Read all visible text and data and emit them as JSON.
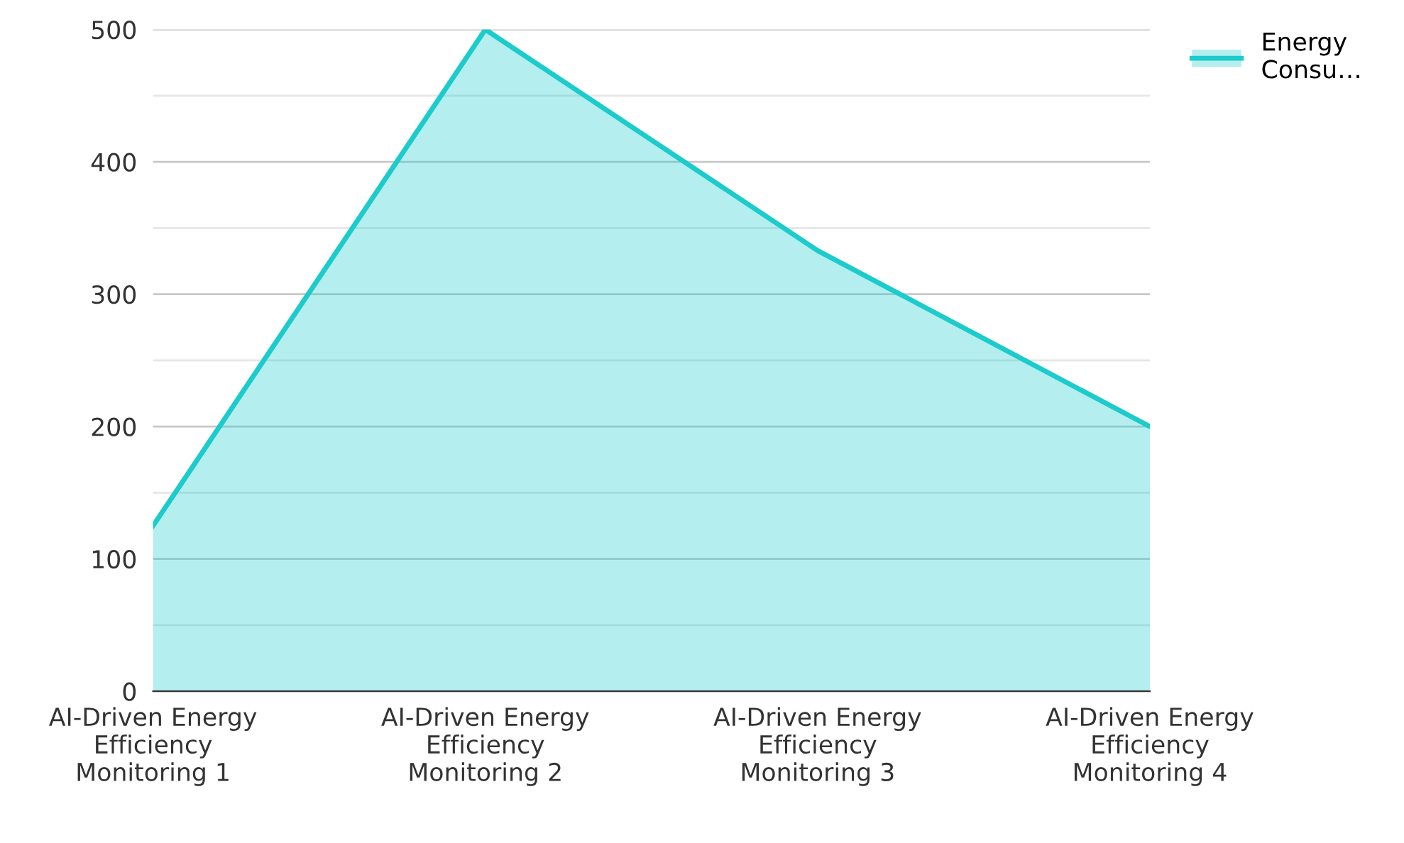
{
  "chart_data": {
    "type": "area",
    "categories": [
      "AI-Driven Energy Efficiency Monitoring 1",
      "AI-Driven Energy Efficiency Monitoring 2",
      "AI-Driven Energy Efficiency Monitoring 3",
      "AI-Driven Energy Efficiency Monitoring 4"
    ],
    "series": [
      {
        "name": "Energy Consu…",
        "color": "#1ccbcb",
        "values": [
          125,
          500,
          333,
          200
        ]
      }
    ],
    "ylim": [
      0,
      500
    ],
    "yticks": [
      0,
      {
        "value": 50,
        "label": null
      },
      100,
      {
        "value": 150,
        "label": null
      },
      200,
      {
        "value": 250,
        "label": null
      },
      300,
      {
        "value": 350,
        "label": null
      },
      400,
      {
        "value": 450,
        "label": null
      },
      500
    ],
    "grid": "y",
    "legend": "top right",
    "marker": "none",
    "line_style": "solid"
  }
}
